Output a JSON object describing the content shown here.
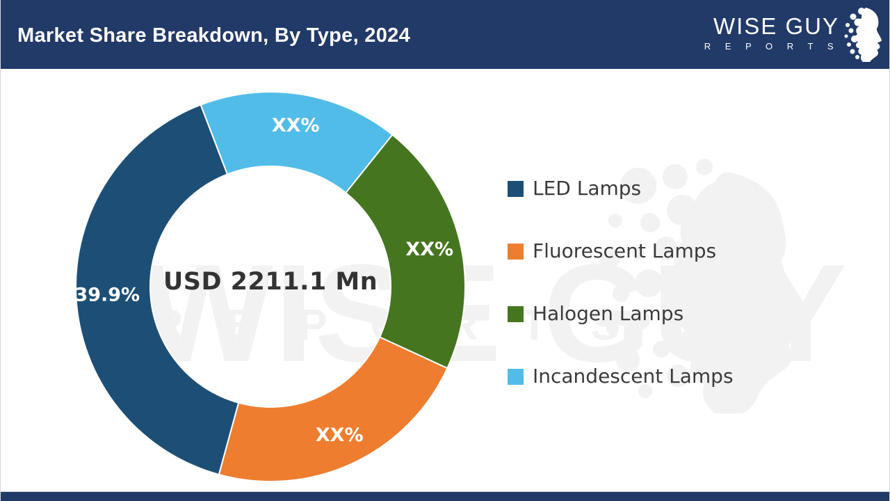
{
  "header": {
    "title": "Market Share Breakdown, By Type, 2024",
    "bg_color": "#223a68",
    "text_color": "#ffffff",
    "logo": {
      "name": "WISE GUY",
      "sub": "R E P O R T S"
    }
  },
  "footer": {
    "bg_color": "#223a68"
  },
  "watermark": {
    "line1": "WISE GUY",
    "line2": "REPORTS"
  },
  "chart_data": {
    "type": "pie",
    "subtype": "donut",
    "title": "Market Share Breakdown, By Type, 2024",
    "center_label": "USD 2211.1 Mn",
    "center_text_color": "#333333",
    "start_angle_deg": 111,
    "direction": "counterclockwise",
    "outer_radius_px": 280,
    "inner_radius_px": 173,
    "legend_position": "right",
    "categories": [
      "LED Lamps",
      "Fluorescent Lamps",
      "Halogen Lamps",
      "Incandescent Lamps"
    ],
    "segments": [
      {
        "name": "LED Lamps",
        "value_pct": 39.9,
        "slice_label": "39.9%",
        "color": "#1d4f76"
      },
      {
        "name": "Fluorescent Lamps",
        "value_pct": 22.4,
        "slice_label": "XX%",
        "color": "#ee7d2f"
      },
      {
        "name": "Halogen Lamps",
        "value_pct": 21.1,
        "slice_label": "XX%",
        "color": "#45751f"
      },
      {
        "name": "Incandescent Lamps",
        "value_pct": 16.6,
        "slice_label": "XX%",
        "color": "#52bce8"
      }
    ]
  }
}
